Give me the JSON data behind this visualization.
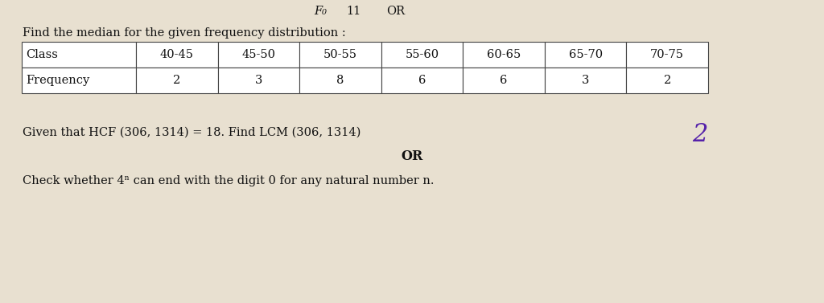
{
  "title_top": "Find the median for the given frequency distribution :",
  "table_headers": [
    "Class",
    "40-45",
    "45-50",
    "50-55",
    "55-60",
    "60-65",
    "65-70",
    "70-75"
  ],
  "table_row1_label": "Frequency",
  "table_row1_values": [
    "2",
    "3",
    "8",
    "6",
    "6",
    "3",
    "2"
  ],
  "line1": "Given that HCF (306, 1314) = 18. Find LCM (306, 1314)",
  "line2": "OR",
  "line3": "Check whether 4ⁿ can end with the digit 0 for any natural number n.",
  "handwritten_number": "2",
  "top_text_left": "F₀",
  "top_text_mid": "11",
  "top_text_right": "OR",
  "bg_color": "#c8bfaf",
  "paper_color": "#e8e0d0",
  "text_color": "#111111",
  "title_fontsize": 10.5,
  "body_fontsize": 10.5,
  "table_fontsize": 10.5,
  "handwritten_color": "#5522aa"
}
